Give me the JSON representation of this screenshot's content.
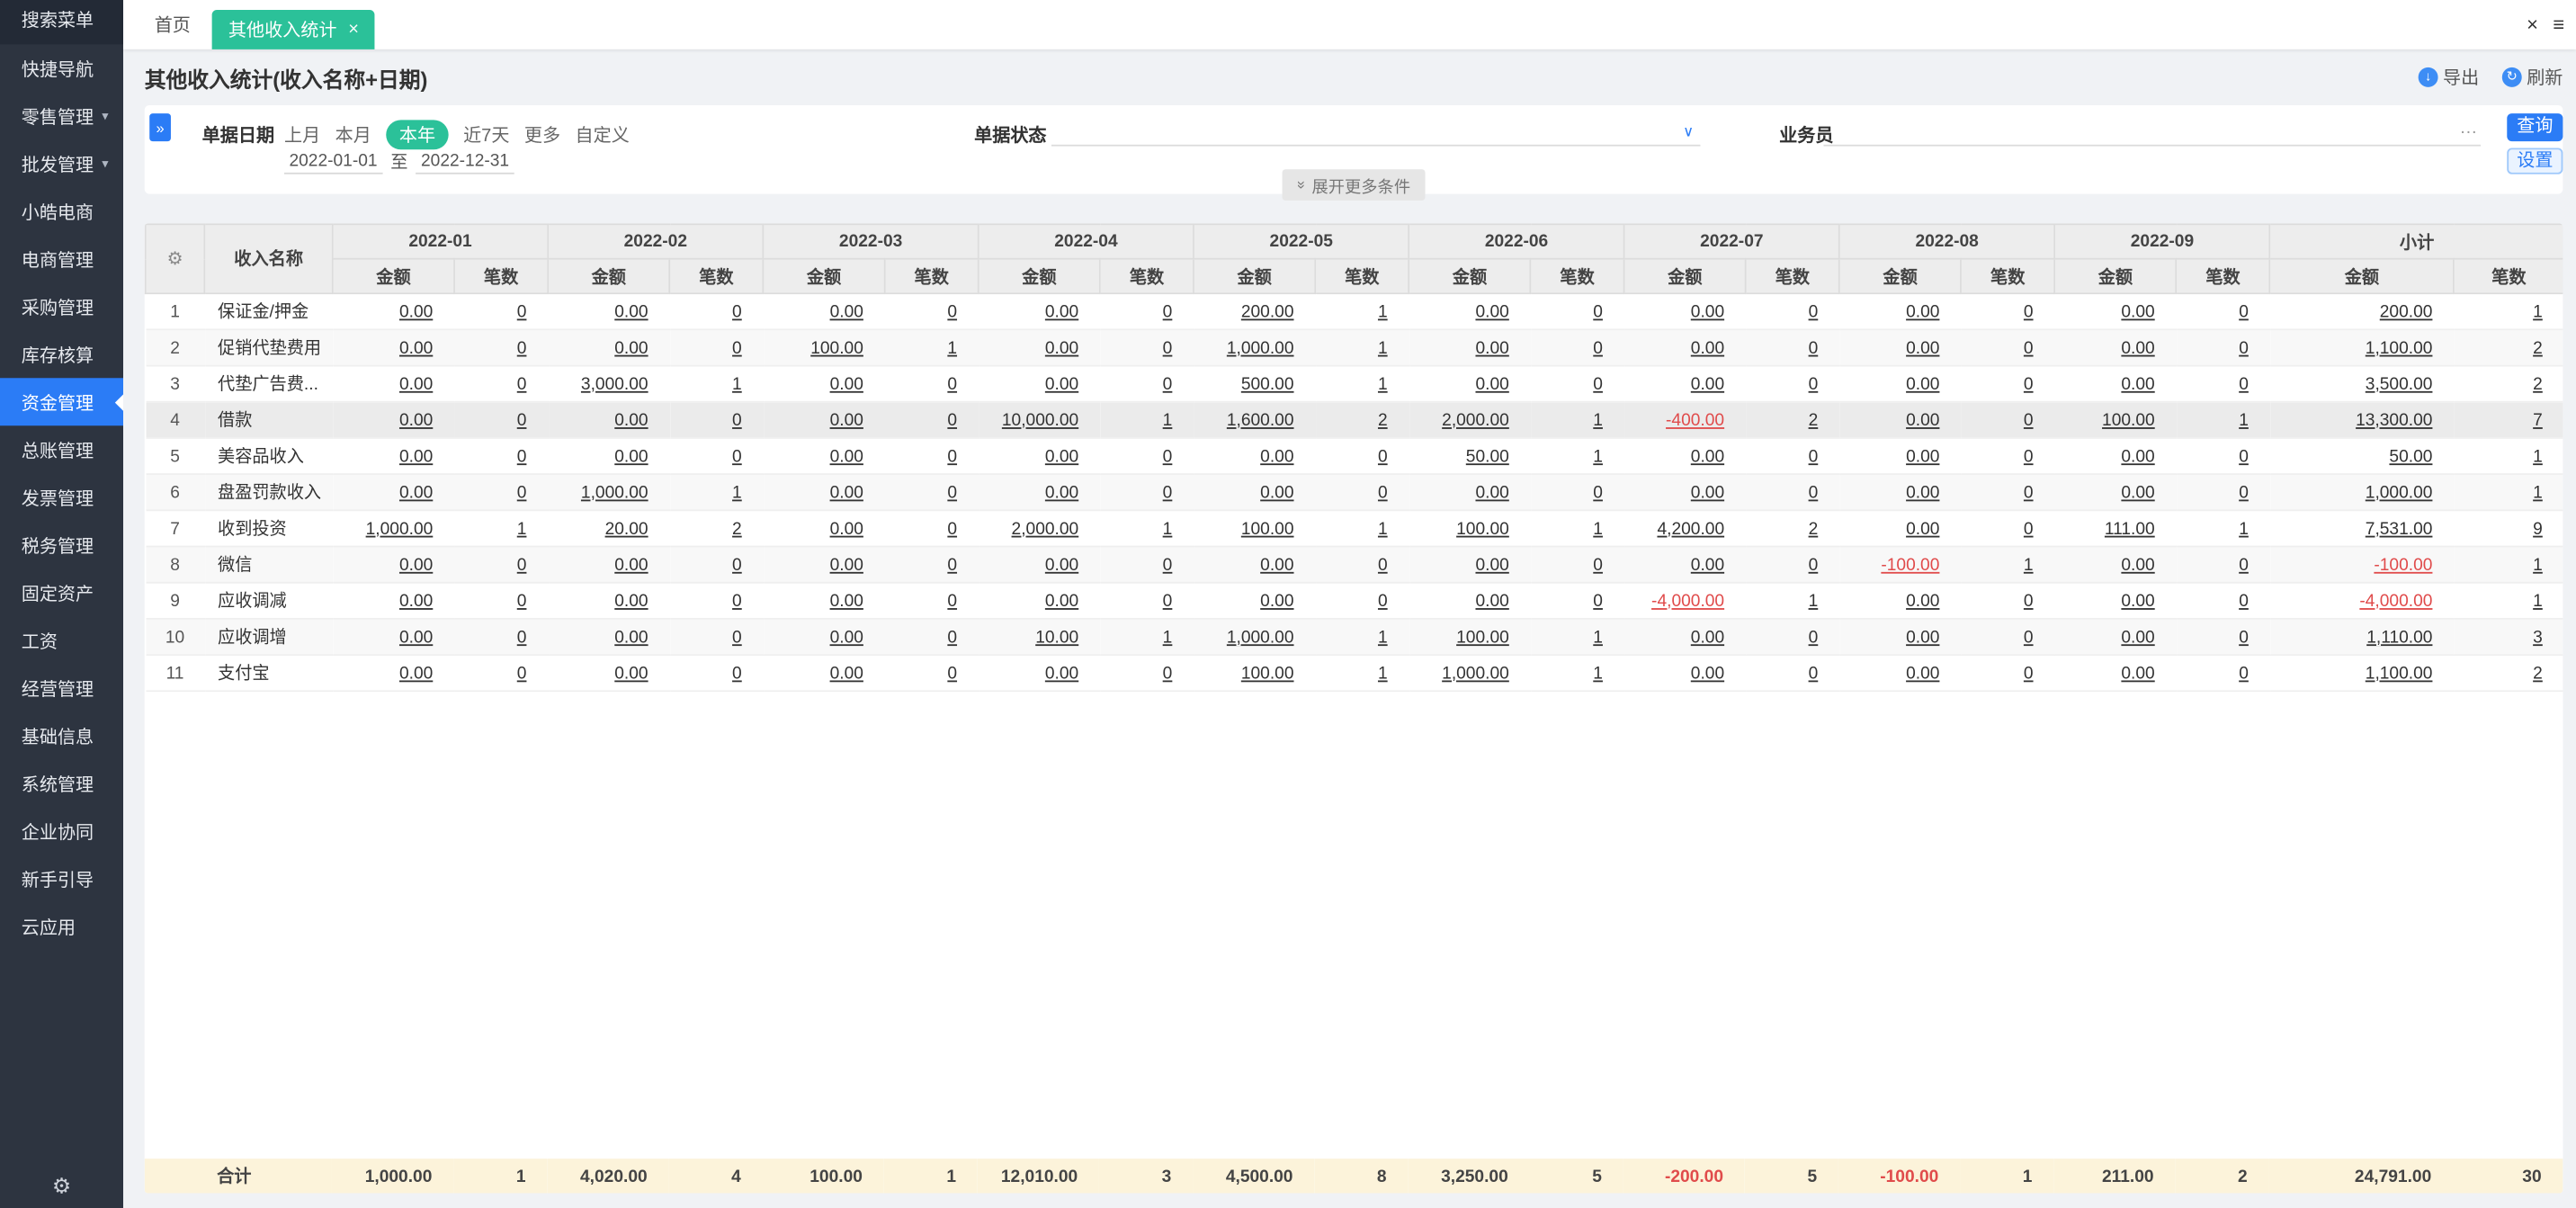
{
  "colors": {
    "accent_blue": "#2b7cf6",
    "tab_green": "#2bc199",
    "negative_red": "#e04b4b",
    "sidebar_bg": "#2d3440",
    "totals_row_bg": "#fcf3da"
  },
  "icons": {
    "gear": "⚙",
    "caret_down": "▾",
    "close": "×",
    "menu": "≡",
    "double_right": "»",
    "chevron_down": "∨",
    "more_dots": "…",
    "export": "↓",
    "refresh": "↻"
  },
  "sidebar": {
    "search_label": "搜索菜单",
    "items": [
      {
        "label": "快捷导航"
      },
      {
        "label": "零售管理",
        "caret": true
      },
      {
        "label": "批发管理",
        "caret": true
      },
      {
        "label": "小皓电商"
      },
      {
        "label": "电商管理"
      },
      {
        "label": "采购管理"
      },
      {
        "label": "库存核算"
      },
      {
        "label": "资金管理",
        "selected": true
      },
      {
        "label": "总账管理"
      },
      {
        "label": "发票管理"
      },
      {
        "label": "税务管理"
      },
      {
        "label": "固定资产"
      },
      {
        "label": "工资"
      },
      {
        "label": "经营管理"
      },
      {
        "label": "基础信息"
      },
      {
        "label": "系统管理"
      },
      {
        "label": "企业协同"
      },
      {
        "label": "新手引导"
      },
      {
        "label": "云应用"
      }
    ]
  },
  "tabs": {
    "home_label": "首页",
    "active_label": "其他收入统计"
  },
  "header": {
    "title": "其他收入统计(收入名称+日期)",
    "export_label": "导出",
    "refresh_label": "刷新"
  },
  "filters": {
    "date_label": "单据日期",
    "date_options": [
      "上月",
      "本月",
      "本年",
      "近7天",
      "更多",
      "自定义"
    ],
    "date_selected": "本年",
    "date_start": "2022-01-01",
    "date_to": "至",
    "date_end": "2022-12-31",
    "status_label": "单据状态",
    "salesman_label": "业务员",
    "query_label": "查询",
    "settings_label": "设置",
    "expand_more_label": "展开更多条件"
  },
  "table": {
    "name_header": "收入名称",
    "amount_header": "金额",
    "count_header": "笔数",
    "month_groups": [
      "2022-01",
      "2022-02",
      "2022-03",
      "2022-04",
      "2022-05",
      "2022-06",
      "2022-07",
      "2022-08",
      "2022-09",
      "小计"
    ],
    "hovered_row_index": 4,
    "rows": [
      {
        "index": 1,
        "name": "保证金/押金",
        "cells": [
          [
            "0.00",
            "0"
          ],
          [
            "0.00",
            "0"
          ],
          [
            "0.00",
            "0"
          ],
          [
            "0.00",
            "0"
          ],
          [
            "200.00",
            "1"
          ],
          [
            "0.00",
            "0"
          ],
          [
            "0.00",
            "0"
          ],
          [
            "0.00",
            "0"
          ],
          [
            "0.00",
            "0"
          ],
          [
            "200.00",
            "1"
          ]
        ]
      },
      {
        "index": 2,
        "name": "促销代垫费用",
        "cells": [
          [
            "0.00",
            "0"
          ],
          [
            "0.00",
            "0"
          ],
          [
            "100.00",
            "1"
          ],
          [
            "0.00",
            "0"
          ],
          [
            "1,000.00",
            "1"
          ],
          [
            "0.00",
            "0"
          ],
          [
            "0.00",
            "0"
          ],
          [
            "0.00",
            "0"
          ],
          [
            "0.00",
            "0"
          ],
          [
            "1,100.00",
            "2"
          ]
        ]
      },
      {
        "index": 3,
        "name": "代垫广告费...",
        "cells": [
          [
            "0.00",
            "0"
          ],
          [
            "3,000.00",
            "1"
          ],
          [
            "0.00",
            "0"
          ],
          [
            "0.00",
            "0"
          ],
          [
            "500.00",
            "1"
          ],
          [
            "0.00",
            "0"
          ],
          [
            "0.00",
            "0"
          ],
          [
            "0.00",
            "0"
          ],
          [
            "0.00",
            "0"
          ],
          [
            "3,500.00",
            "2"
          ]
        ]
      },
      {
        "index": 4,
        "name": "借款",
        "cells": [
          [
            "0.00",
            "0"
          ],
          [
            "0.00",
            "0"
          ],
          [
            "0.00",
            "0"
          ],
          [
            "10,000.00",
            "1"
          ],
          [
            "1,600.00",
            "2"
          ],
          [
            "2,000.00",
            "1"
          ],
          [
            "-400.00",
            "2"
          ],
          [
            "0.00",
            "0"
          ],
          [
            "100.00",
            "1"
          ],
          [
            "13,300.00",
            "7"
          ]
        ]
      },
      {
        "index": 5,
        "name": "美容品收入",
        "cells": [
          [
            "0.00",
            "0"
          ],
          [
            "0.00",
            "0"
          ],
          [
            "0.00",
            "0"
          ],
          [
            "0.00",
            "0"
          ],
          [
            "0.00",
            "0"
          ],
          [
            "50.00",
            "1"
          ],
          [
            "0.00",
            "0"
          ],
          [
            "0.00",
            "0"
          ],
          [
            "0.00",
            "0"
          ],
          [
            "50.00",
            "1"
          ]
        ]
      },
      {
        "index": 6,
        "name": "盘盈罚款收入",
        "cells": [
          [
            "0.00",
            "0"
          ],
          [
            "1,000.00",
            "1"
          ],
          [
            "0.00",
            "0"
          ],
          [
            "0.00",
            "0"
          ],
          [
            "0.00",
            "0"
          ],
          [
            "0.00",
            "0"
          ],
          [
            "0.00",
            "0"
          ],
          [
            "0.00",
            "0"
          ],
          [
            "0.00",
            "0"
          ],
          [
            "1,000.00",
            "1"
          ]
        ]
      },
      {
        "index": 7,
        "name": "收到投资",
        "cells": [
          [
            "1,000.00",
            "1"
          ],
          [
            "20.00",
            "2"
          ],
          [
            "0.00",
            "0"
          ],
          [
            "2,000.00",
            "1"
          ],
          [
            "100.00",
            "1"
          ],
          [
            "100.00",
            "1"
          ],
          [
            "4,200.00",
            "2"
          ],
          [
            "0.00",
            "0"
          ],
          [
            "111.00",
            "1"
          ],
          [
            "7,531.00",
            "9"
          ]
        ]
      },
      {
        "index": 8,
        "name": "微信",
        "cells": [
          [
            "0.00",
            "0"
          ],
          [
            "0.00",
            "0"
          ],
          [
            "0.00",
            "0"
          ],
          [
            "0.00",
            "0"
          ],
          [
            "0.00",
            "0"
          ],
          [
            "0.00",
            "0"
          ],
          [
            "0.00",
            "0"
          ],
          [
            "-100.00",
            "1"
          ],
          [
            "0.00",
            "0"
          ],
          [
            "-100.00",
            "1"
          ]
        ]
      },
      {
        "index": 9,
        "name": "应收调减",
        "cells": [
          [
            "0.00",
            "0"
          ],
          [
            "0.00",
            "0"
          ],
          [
            "0.00",
            "0"
          ],
          [
            "0.00",
            "0"
          ],
          [
            "0.00",
            "0"
          ],
          [
            "0.00",
            "0"
          ],
          [
            "-4,000.00",
            "1"
          ],
          [
            "0.00",
            "0"
          ],
          [
            "0.00",
            "0"
          ],
          [
            "-4,000.00",
            "1"
          ]
        ]
      },
      {
        "index": 10,
        "name": "应收调增",
        "cells": [
          [
            "0.00",
            "0"
          ],
          [
            "0.00",
            "0"
          ],
          [
            "0.00",
            "0"
          ],
          [
            "10.00",
            "1"
          ],
          [
            "1,000.00",
            "1"
          ],
          [
            "100.00",
            "1"
          ],
          [
            "0.00",
            "0"
          ],
          [
            "0.00",
            "0"
          ],
          [
            "0.00",
            "0"
          ],
          [
            "1,110.00",
            "3"
          ]
        ]
      },
      {
        "index": 11,
        "name": "支付宝",
        "cells": [
          [
            "0.00",
            "0"
          ],
          [
            "0.00",
            "0"
          ],
          [
            "0.00",
            "0"
          ],
          [
            "0.00",
            "0"
          ],
          [
            "100.00",
            "1"
          ],
          [
            "1,000.00",
            "1"
          ],
          [
            "0.00",
            "0"
          ],
          [
            "0.00",
            "0"
          ],
          [
            "0.00",
            "0"
          ],
          [
            "1,100.00",
            "2"
          ]
        ]
      }
    ],
    "footer": {
      "label": "合计",
      "values": [
        "1,000.00",
        "1",
        "4,020.00",
        "4",
        "100.00",
        "1",
        "12,010.00",
        "3",
        "4,500.00",
        "8",
        "3,250.00",
        "5",
        "-200.00",
        "5",
        "-100.00",
        "1",
        "211.00",
        "2",
        "24,791.00",
        "30"
      ]
    }
  }
}
